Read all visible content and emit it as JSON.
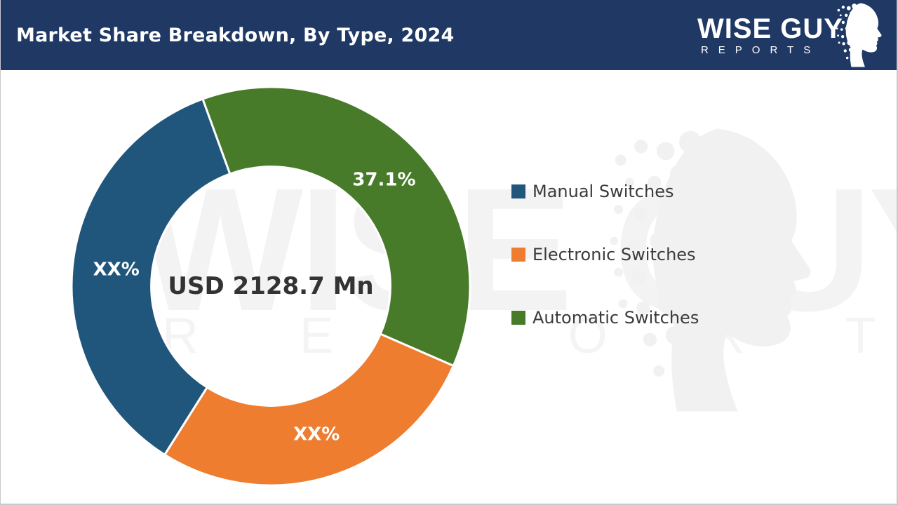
{
  "header": {
    "title": "Market Share Breakdown, By Type, 2024",
    "logo": {
      "line1": "WISE GUY",
      "line2": "REPORTS"
    }
  },
  "watermark": {
    "line1": "WISE GUY",
    "line2": "R E P O R T S"
  },
  "chart_data": {
    "type": "pie",
    "subtype": "donut",
    "title": "Market Share Breakdown, By Type, 2024",
    "center_label": "USD 2128.7 Mn",
    "start_angle_deg": -20,
    "direction": "counterclockwise",
    "inner_radius_ratio": 0.6,
    "label_radius_ratio": 0.78,
    "legend_position": "right",
    "segments": [
      {
        "label": "Manual Switches",
        "value_pct": 35.5,
        "display_label": "XX%",
        "color": "#21567C"
      },
      {
        "label": "Electronic Switches",
        "value_pct": 27.4,
        "display_label": "XX%",
        "color": "#EE7D30"
      },
      {
        "label": "Automatic Switches",
        "value_pct": 37.1,
        "display_label": "37.1%",
        "color": "#477B29"
      }
    ]
  },
  "colors": {
    "header_bg": "#1F3864",
    "segment_label_text": "#FFFFFF",
    "center_text": "#333333",
    "legend_text": "#3B3B3B",
    "page_border": "#C9C9C9"
  }
}
